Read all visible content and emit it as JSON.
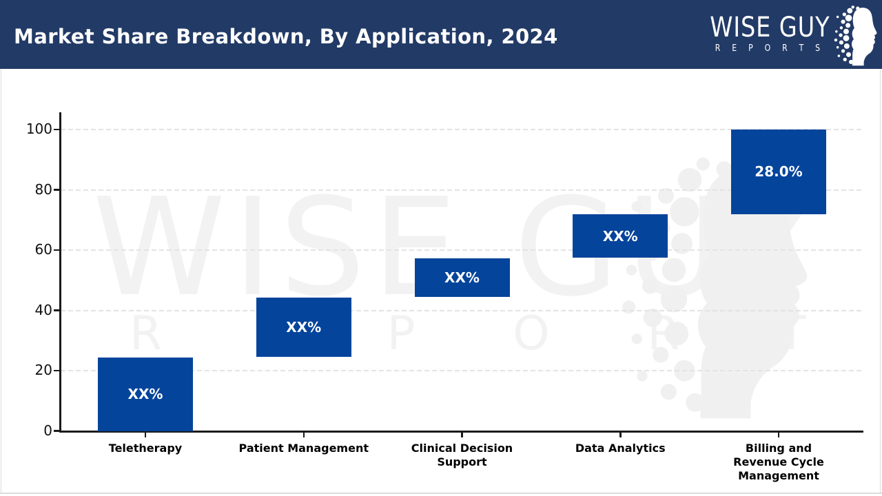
{
  "header": {
    "title": "Market Share Breakdown, By Application, 2024",
    "bg_color": "#223a66",
    "logo": {
      "brand_line1": "WISE GUY",
      "brand_line2": "R E P O R T S"
    }
  },
  "watermark": {
    "line1": "WISE GUY",
    "line2": "R E P O R T S"
  },
  "chart_data": {
    "type": "bar",
    "variant": "waterfall",
    "title": "Market Share Breakdown, By Application, 2024",
    "categories": [
      "Teletherapy",
      "Patient Management",
      "Clinical Decision Support",
      "Data Analytics",
      "Billing and Revenue Cycle Management"
    ],
    "category_label_lines": [
      [
        "Teletherapy"
      ],
      [
        "Patient Management"
      ],
      [
        "Clinical Decision",
        "Support"
      ],
      [
        "Data Analytics"
      ],
      [
        "Billing and",
        "Revenue Cycle",
        "Management"
      ]
    ],
    "segments": [
      {
        "category": "Teletherapy",
        "start": 0,
        "end": 24.4,
        "label": "XX%"
      },
      {
        "category": "Patient Management",
        "start": 24.6,
        "end": 44.2,
        "label": "XX%"
      },
      {
        "category": "Clinical Decision Support",
        "start": 44.5,
        "end": 57.2,
        "label": "XX%"
      },
      {
        "category": "Data Analytics",
        "start": 57.5,
        "end": 71.8,
        "label": "XX%"
      },
      {
        "category": "Billing and Revenue Cycle Management",
        "start": 72.0,
        "end": 100.0,
        "label": "28.0%"
      }
    ],
    "yticks": [
      0,
      20,
      40,
      60,
      80,
      100
    ],
    "ylim": [
      0,
      105.7
    ],
    "xlabel": "",
    "ylabel": "",
    "legend": "none",
    "grid": {
      "horizontal": true,
      "style": "dashed",
      "color": "#e3e3e3"
    },
    "bar_color": "#05449b",
    "bar_label_color": "#ffffff",
    "axis_color": "#1a1a1a"
  }
}
